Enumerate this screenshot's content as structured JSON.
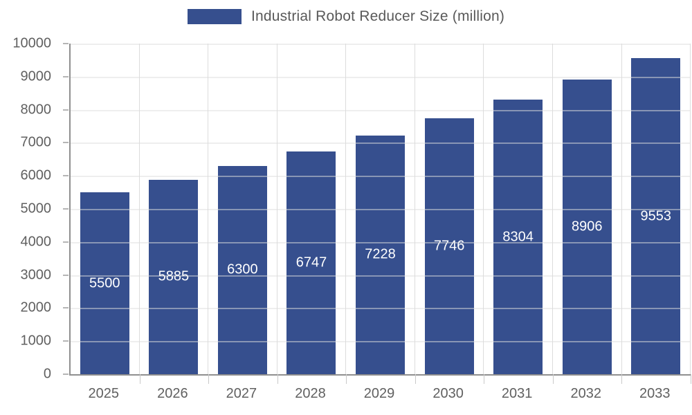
{
  "chart_data": {
    "type": "bar",
    "title": "Industrial Robot Reducer Size (million)",
    "categories": [
      "2025",
      "2026",
      "2027",
      "2028",
      "2029",
      "2030",
      "2031",
      "2032",
      "2033"
    ],
    "values": [
      5500,
      5885,
      6300,
      6747,
      7228,
      7746,
      8304,
      8906,
      9553
    ],
    "xlabel": "",
    "ylabel": "",
    "ylim": [
      0,
      10000
    ],
    "yticks": [
      0,
      1000,
      2000,
      3000,
      4000,
      5000,
      6000,
      7000,
      8000,
      9000,
      10000
    ],
    "grid": true,
    "legend_position": "top",
    "bar_color": "#364F8E",
    "value_label_color": "#FFFFFF",
    "tick_label_color": "#606060",
    "legend_text_color": "#595959",
    "gridline_color": "#DCDCDC",
    "axis_line_color": "#8F8F8F"
  }
}
